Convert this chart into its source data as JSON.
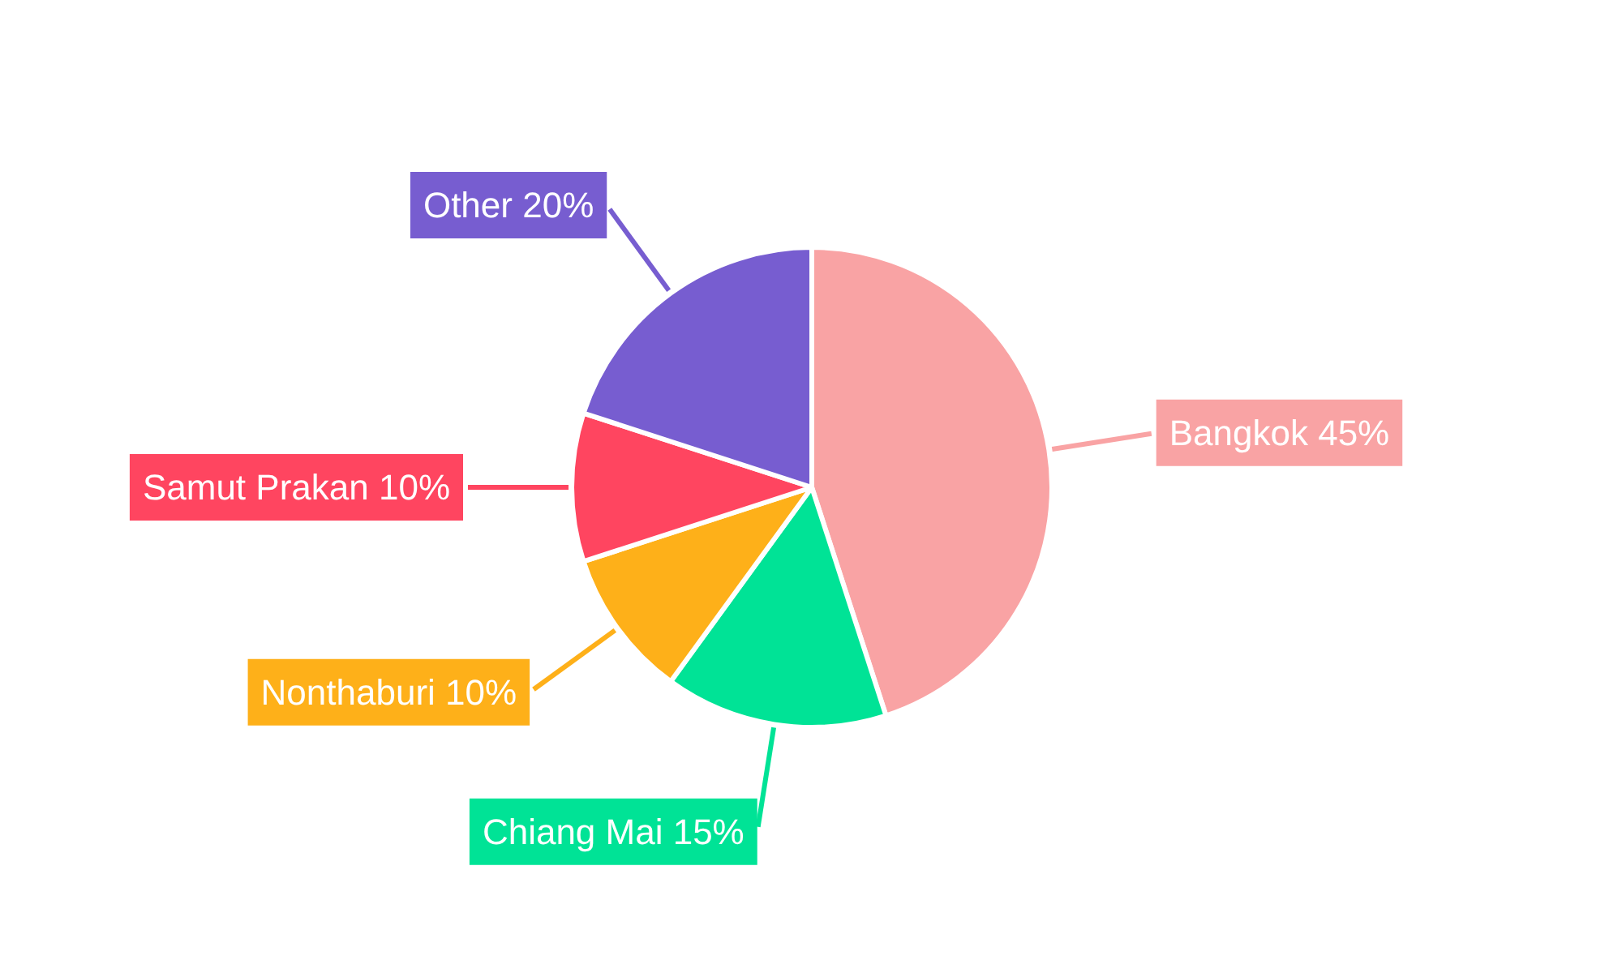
{
  "chart_data": {
    "type": "pie",
    "categories": [
      "Bangkok",
      "Chiang Mai",
      "Nonthaburi",
      "Samut Prakan",
      "Other"
    ],
    "values": [
      45,
      15,
      10,
      10,
      20
    ],
    "colors": [
      "#f9a3a4",
      "#00e396",
      "#feb019",
      "#ff4560",
      "#775dd0"
    ],
    "value_labels": [
      "45%",
      "15%",
      "10%",
      "10%",
      "20%"
    ]
  }
}
